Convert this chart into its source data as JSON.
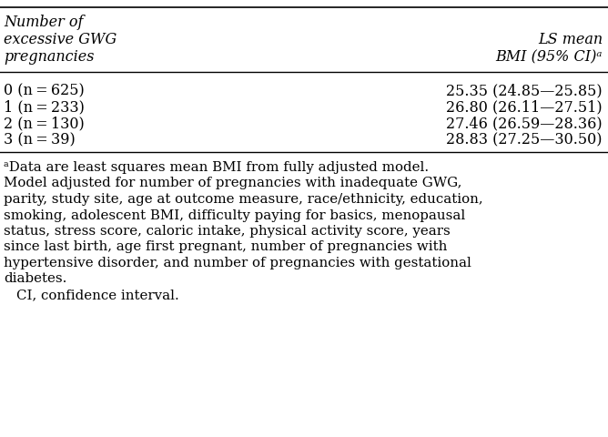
{
  "header_col1_lines": [
    "Number of",
    "excessive GWG",
    "pregnancies"
  ],
  "header_col2_lines": [
    "LS mean",
    "BMI (95% CI)ᵃ"
  ],
  "rows_col1": [
    "0 (n = 625)",
    "1 (n = 233)",
    "2 (n = 130)",
    "3 (n = 39)"
  ],
  "rows_col2": [
    "25.35 (24.85—25.85)",
    "26.80 (26.11—27.51)",
    "27.46 (26.59—28.36)",
    "28.83 (27.25—30.50)"
  ],
  "footnote_lines": [
    "ᵃData are least squares mean BMI from fully adjusted model.",
    "Model adjusted for number of pregnancies with inadequate GWG,",
    "parity, study site, age at outcome measure, race/ethnicity, education,",
    "smoking, adolescent BMI, difficulty paying for basics, menopausal",
    "status, stress score, caloric intake, physical activity score, years",
    "since last birth, age first pregnant, number of pregnancies with",
    "hypertensive disorder, and number of pregnancies with gestational",
    "diabetes."
  ],
  "footnote_last": "CI, confidence interval.",
  "bg_color": "#ffffff",
  "text_color": "#000000",
  "font_size": 11.5,
  "header_font_size": 11.5,
  "footnote_font_size": 10.8
}
